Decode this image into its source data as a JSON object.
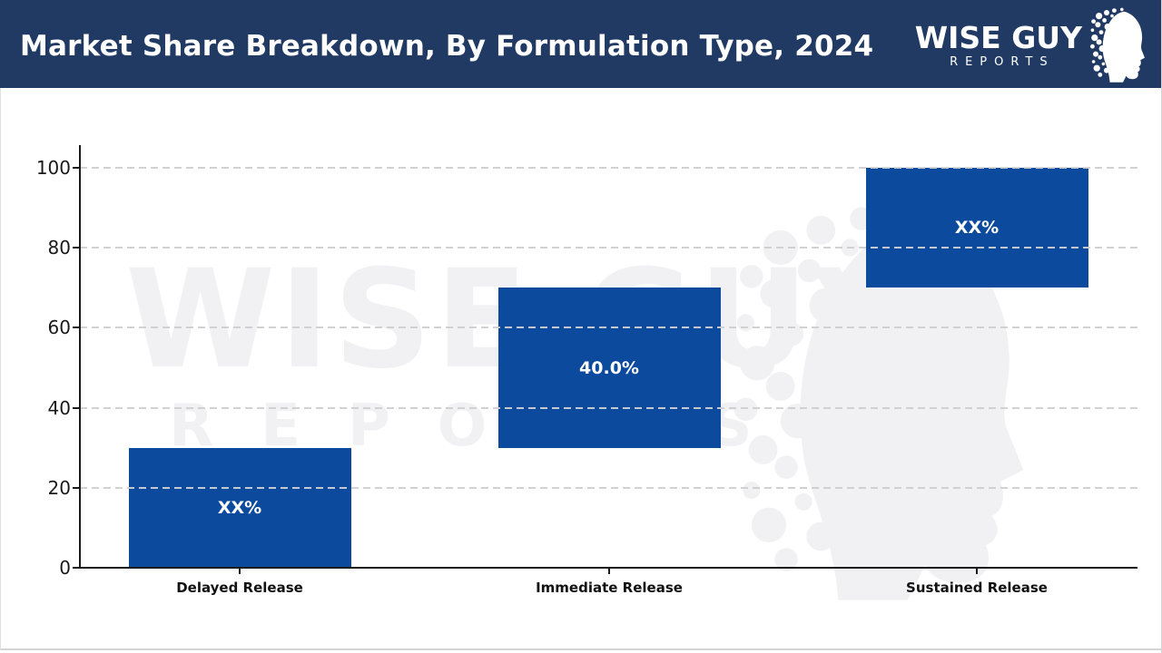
{
  "header": {
    "title": "Market Share Breakdown, By Formulation Type, 2024",
    "bg_color": "#213a64",
    "logo": {
      "wordmark": "WISE GUY",
      "subtitle": "REPORTS",
      "head_icon": "dotted-face-profile"
    }
  },
  "watermark": {
    "wordmark": "WISE GUY",
    "subtitle": "REPORTS",
    "head_icon": "dotted-face-profile"
  },
  "chart_data": {
    "type": "bar",
    "subtype": "floating-range-bars",
    "title": "Market Share Breakdown, By Formulation Type, 2024",
    "categories": [
      "Delayed Release",
      "Immediate Release",
      "Sustained Release"
    ],
    "series": [
      {
        "name": "Market share (%)",
        "ranges": [
          [
            0,
            30
          ],
          [
            30,
            70
          ],
          [
            70,
            100
          ]
        ],
        "labels": [
          "XX%",
          "40.0%",
          "XX%"
        ]
      }
    ],
    "xlabel": "",
    "ylabel": "",
    "ylim": [
      0,
      105
    ],
    "yticks": [
      0,
      20,
      40,
      60,
      80,
      100
    ],
    "grid": {
      "horizontal": true,
      "style": "dashed",
      "color": "#d4d4d4",
      "drawn_above_bars": true
    },
    "bar_color": "#0c4a9e",
    "bar_label_color": "#ffffff",
    "legend": "none"
  }
}
